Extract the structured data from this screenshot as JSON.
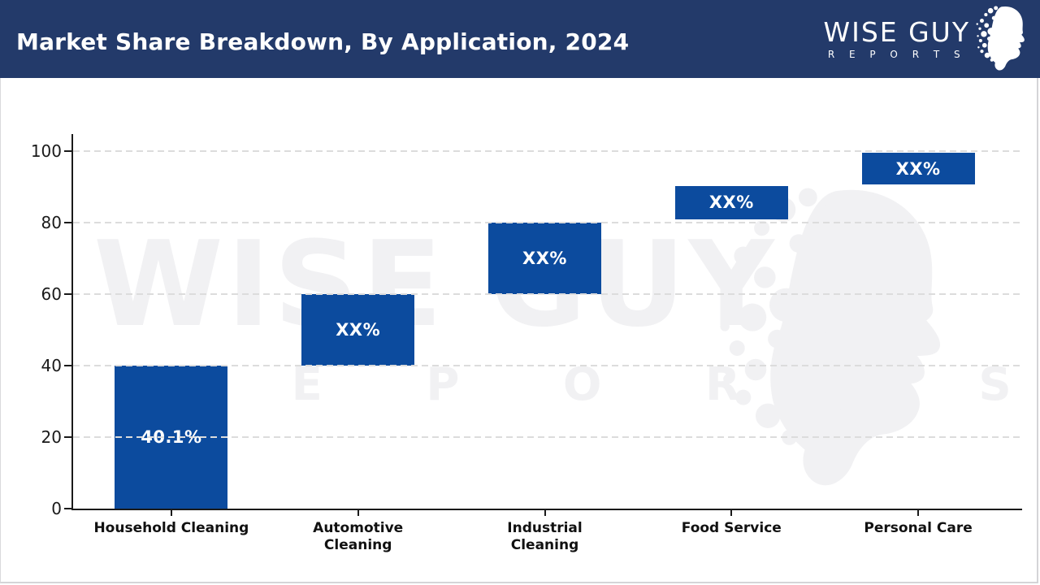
{
  "header": {
    "title": "Market Share Breakdown, By Application, 2024",
    "background_color": "#233a6a",
    "title_color": "#ffffff",
    "logo": {
      "line1": "WISE GUY",
      "line2": "R E P O R T S",
      "face_icon": "dotted-head-profile"
    }
  },
  "watermark": {
    "line1": "WISE GUY",
    "line2": "R E P O R T S",
    "color": "#f1f1f3"
  },
  "chart_data": {
    "type": "bar",
    "subtype": "waterfall",
    "title": "Market Share Breakdown, By Application, 2024",
    "categories": [
      "Household Cleaning",
      "Automotive\nCleaning",
      "Industrial\nCleaning",
      "Food Service",
      "Personal Care"
    ],
    "segments": [
      {
        "category": "Household Cleaning",
        "start": 0,
        "end": 40.1,
        "label": "40.1%"
      },
      {
        "category": "Automotive Cleaning",
        "start": 40,
        "end": 60,
        "label": "XX%"
      },
      {
        "category": "Industrial Cleaning",
        "start": 60,
        "end": 80,
        "label": "XX%"
      },
      {
        "category": "Food Service",
        "start": 81,
        "end": 90.2,
        "label": "XX%"
      },
      {
        "category": "Personal Care",
        "start": 90.6,
        "end": 99.6,
        "label": "XX%"
      }
    ],
    "ylim": [
      0,
      100
    ],
    "yticks": [
      0,
      20,
      40,
      60,
      80,
      100
    ],
    "grid": "dashed-horizontal",
    "legend": "none",
    "bar_color": "#0c4b9e",
    "bar_label_color": "#ffffff",
    "axis_color": "#1a1a1a",
    "gridline_color": "#dcdcdc"
  }
}
